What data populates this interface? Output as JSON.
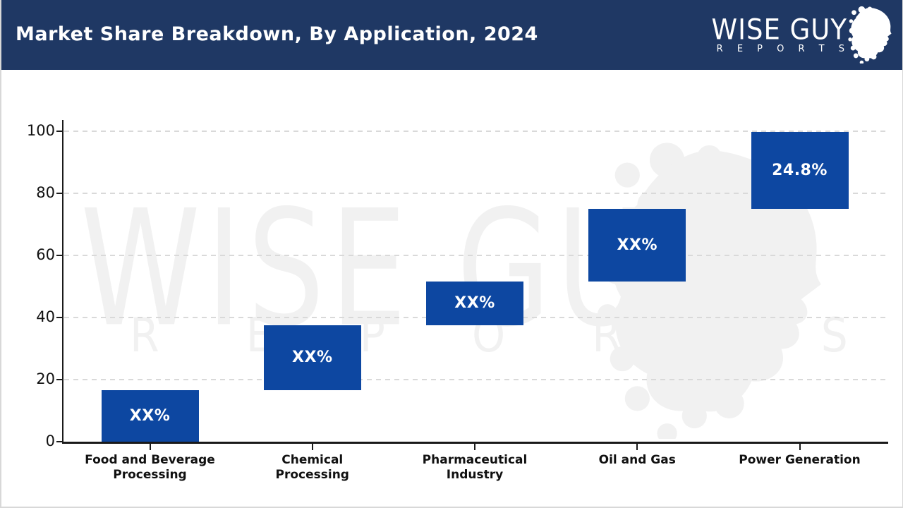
{
  "header": {
    "title": "Market Share Breakdown, By Application, 2024",
    "bg_color": "#1f3864",
    "logo_text": "WISE GUY",
    "logo_subtext": "R E P O R T S"
  },
  "watermark": {
    "text": "WISE GUY",
    "subtext": "R E P O R T S"
  },
  "chart_data": {
    "type": "bar",
    "subtype": "waterfall",
    "title": "Market Share Breakdown, By Application, 2024",
    "categories": [
      "Food and Beverage\nProcessing",
      "Chemical\nProcessing",
      "Pharmaceutical\nIndustry",
      "Oil and Gas",
      "Power Generation"
    ],
    "series": [
      {
        "name": "Market share (%)",
        "bar_start": [
          0,
          16.6,
          37.6,
          51.7,
          75.0
        ],
        "bar_end": [
          16.6,
          37.6,
          51.7,
          75.0,
          99.8
        ],
        "bar_labels": [
          "XX%",
          "XX%",
          "XX%",
          "XX%",
          "24.8%"
        ]
      }
    ],
    "ylim": [
      0,
      104
    ],
    "yticks": [
      0,
      20,
      40,
      60,
      80,
      100
    ],
    "grid": "horizontal-dashed",
    "legend": "none",
    "xlabel": "",
    "ylabel": "",
    "bar_color": "#0d47a1",
    "axis_color": "#1a1a1a",
    "grid_color": "#d9d9d9",
    "bar_label_color": "#ffffff"
  }
}
